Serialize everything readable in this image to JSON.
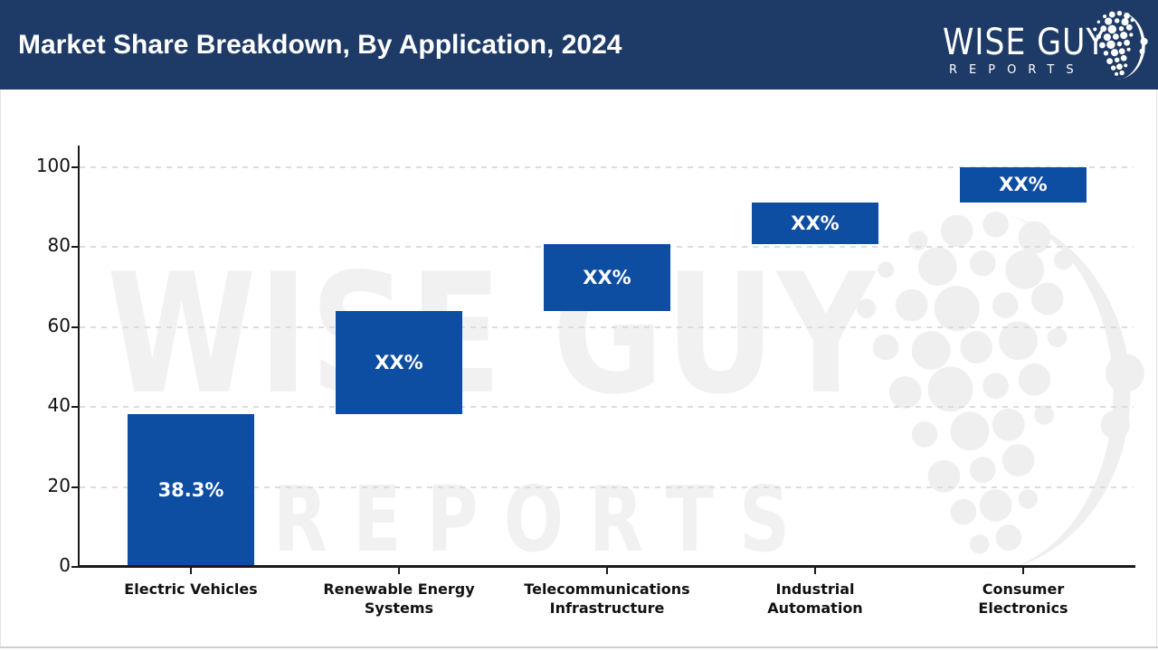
{
  "header": {
    "title": "Market Share Breakdown, By Application, 2024",
    "logo": {
      "wordmark": "WISE GUY",
      "subtext": "REPORTS"
    }
  },
  "watermark": {
    "wordmark": "WISE GUY",
    "subtext": "REPORTS"
  },
  "chart_data": {
    "type": "bar",
    "variant": "waterfall",
    "title": "Market Share Breakdown, By Application, 2024",
    "categories": [
      [
        "Electric Vehicles"
      ],
      [
        "Renewable Energy",
        "Systems"
      ],
      [
        "Telecommunications",
        "Infrastructure"
      ],
      [
        "Industrial",
        "Automation"
      ],
      [
        "Consumer",
        "Electronics"
      ]
    ],
    "segments": [
      {
        "name": "Electric Vehicles",
        "start": 0,
        "end": 38.3,
        "label": "38.3%"
      },
      {
        "name": "Renewable Energy Systems",
        "start": 38.3,
        "end": 64.0,
        "label": "XX%"
      },
      {
        "name": "Telecommunications Infrastructure",
        "start": 64.0,
        "end": 80.8,
        "label": "XX%"
      },
      {
        "name": "Industrial Automation",
        "start": 80.8,
        "end": 91.2,
        "label": "XX%"
      },
      {
        "name": "Consumer Electronics",
        "start": 91.2,
        "end": 100,
        "label": "XX%"
      }
    ],
    "yticks": [
      0,
      20,
      40,
      60,
      80,
      100
    ],
    "ylim": [
      0,
      105
    ],
    "xlabel": "",
    "ylabel": "",
    "grid": "horizontal-dashed",
    "legend": "none",
    "bar_color": "#0d4da2",
    "bar_label_color": "#ffffff"
  },
  "colors": {
    "header_bg": "#1e3a66",
    "accent_blue": "#0d4da2",
    "watermark": "#f1f1f1",
    "axis": "#1a1a1a",
    "grid": "#dcdcdc"
  }
}
